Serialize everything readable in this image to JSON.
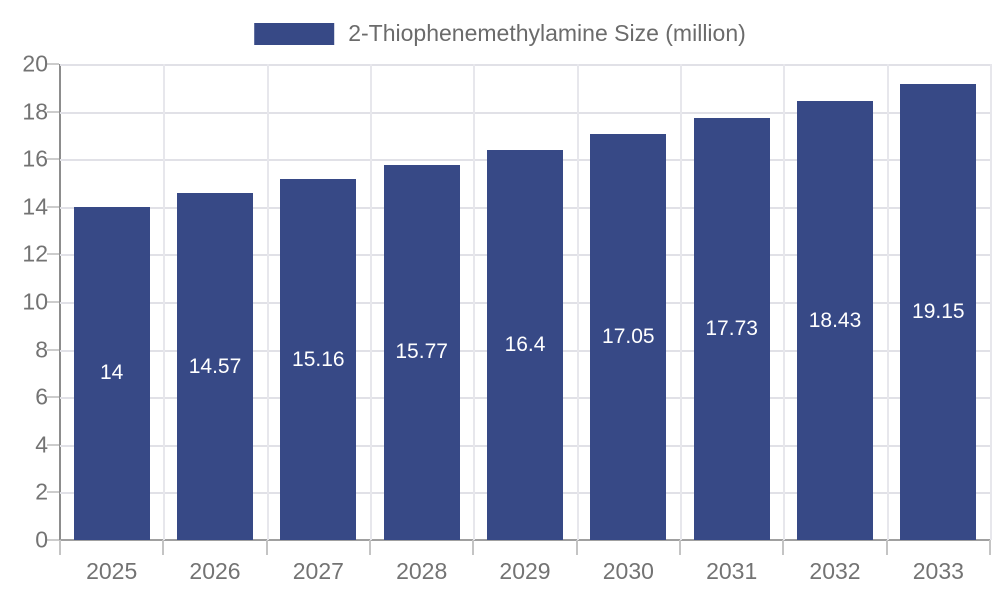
{
  "legend": {
    "label": "2-Thiophenemethylamine Size (million)",
    "swatch_color": "#374986"
  },
  "chart_data": {
    "type": "bar",
    "title": "",
    "categories": [
      "2025",
      "2026",
      "2027",
      "2028",
      "2029",
      "2030",
      "2031",
      "2032",
      "2033"
    ],
    "series": [
      {
        "name": "2-Thiophenemethylamine Size (million)",
        "values": [
          14,
          14.57,
          15.16,
          15.77,
          16.4,
          17.05,
          17.73,
          18.43,
          19.15
        ]
      }
    ],
    "xlabel": "",
    "ylabel": "",
    "ylim": [
      0,
      20
    ],
    "yticks": [
      0,
      2,
      4,
      6,
      8,
      10,
      12,
      14,
      16,
      18,
      20
    ],
    "grid": true,
    "legend_position": "top-center",
    "bar_color": "#374986",
    "bar_label_color": "#ffffff",
    "axis_text_color": "#737373",
    "grid_color": "#e1e1e7",
    "axis_line_color": "#8d8d8d"
  }
}
